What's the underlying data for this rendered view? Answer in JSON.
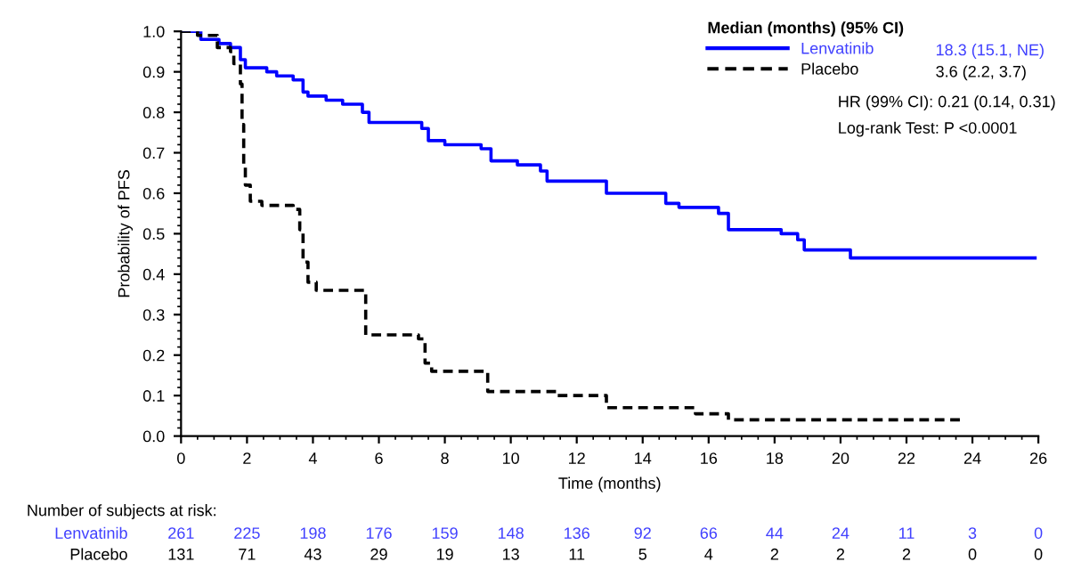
{
  "chart_data": {
    "type": "step",
    "xlabel": "Time (months)",
    "ylabel": "Probability of PFS",
    "legend_title": "Median (months) (95% CI)",
    "legend": "top right",
    "grid": false,
    "xlim": [
      0,
      26
    ],
    "xticks": [
      0,
      2,
      4,
      6,
      8,
      10,
      12,
      14,
      16,
      18,
      20,
      22,
      24,
      26
    ],
    "ylim": [
      0,
      1.0
    ],
    "yticks": [
      {
        "value": 0,
        "label": "0.0"
      },
      0.1,
      0.2,
      0.3,
      0.4,
      0.5,
      0.6,
      0.7,
      0.8,
      0.9,
      {
        "value": 1,
        "label": "1.0"
      }
    ],
    "series": [
      {
        "name": "Lenvatinib",
        "color": "#0000ff",
        "line_style": "solid",
        "x": [
          0,
          0.6,
          1.15,
          1.5,
          1.8,
          1.95,
          2.6,
          2.9,
          3.4,
          3.7,
          3.85,
          4.4,
          4.9,
          5.5,
          5.7,
          7.3,
          7.5,
          8.0,
          9.1,
          9.4,
          10.2,
          10.9,
          11.1,
          12.9,
          14.7,
          15.1,
          16.3,
          16.6,
          18.2,
          18.7,
          18.9,
          20.3,
          25.9
        ],
        "values": [
          1.0,
          0.98,
          0.97,
          0.96,
          0.93,
          0.91,
          0.9,
          0.89,
          0.88,
          0.85,
          0.84,
          0.83,
          0.82,
          0.8,
          0.775,
          0.76,
          0.73,
          0.72,
          0.71,
          0.68,
          0.67,
          0.655,
          0.63,
          0.6,
          0.575,
          0.565,
          0.55,
          0.51,
          0.5,
          0.485,
          0.46,
          0.44,
          0.44
        ]
      },
      {
        "name": "Placebo",
        "color": "#000000",
        "line_style": "dashed",
        "x": [
          0,
          0.5,
          1.1,
          1.5,
          1.6,
          1.8,
          1.85,
          1.9,
          1.95,
          2.1,
          2.45,
          3.4,
          3.6,
          3.7,
          3.85,
          4.1,
          5.6,
          7.2,
          7.4,
          7.6,
          9.3,
          11.4,
          12.9,
          15.6,
          16.6,
          23.7
        ],
        "values": [
          1.0,
          0.99,
          0.96,
          0.95,
          0.92,
          0.87,
          0.77,
          0.67,
          0.62,
          0.58,
          0.57,
          0.56,
          0.51,
          0.43,
          0.38,
          0.36,
          0.25,
          0.24,
          0.18,
          0.16,
          0.11,
          0.1,
          0.07,
          0.055,
          0.04,
          0.04
        ]
      }
    ],
    "annotations": [
      "18.3 (15.1, NE)",
      "3.6 (2.2, 3.7)",
      "HR (99% CI): 0.21 (0.14, 0.31)",
      "Log-rank Test: P <0.0001",
      "Number of subjects at risk:",
      "261",
      "225",
      "198",
      "176",
      "159",
      "148",
      "136",
      "92",
      "66",
      "44",
      "24",
      "11",
      "3",
      "0",
      "131",
      "71",
      "43",
      "29",
      "19",
      "13",
      "11",
      "5",
      "4",
      "2",
      "2",
      "2",
      "0",
      "0"
    ]
  }
}
